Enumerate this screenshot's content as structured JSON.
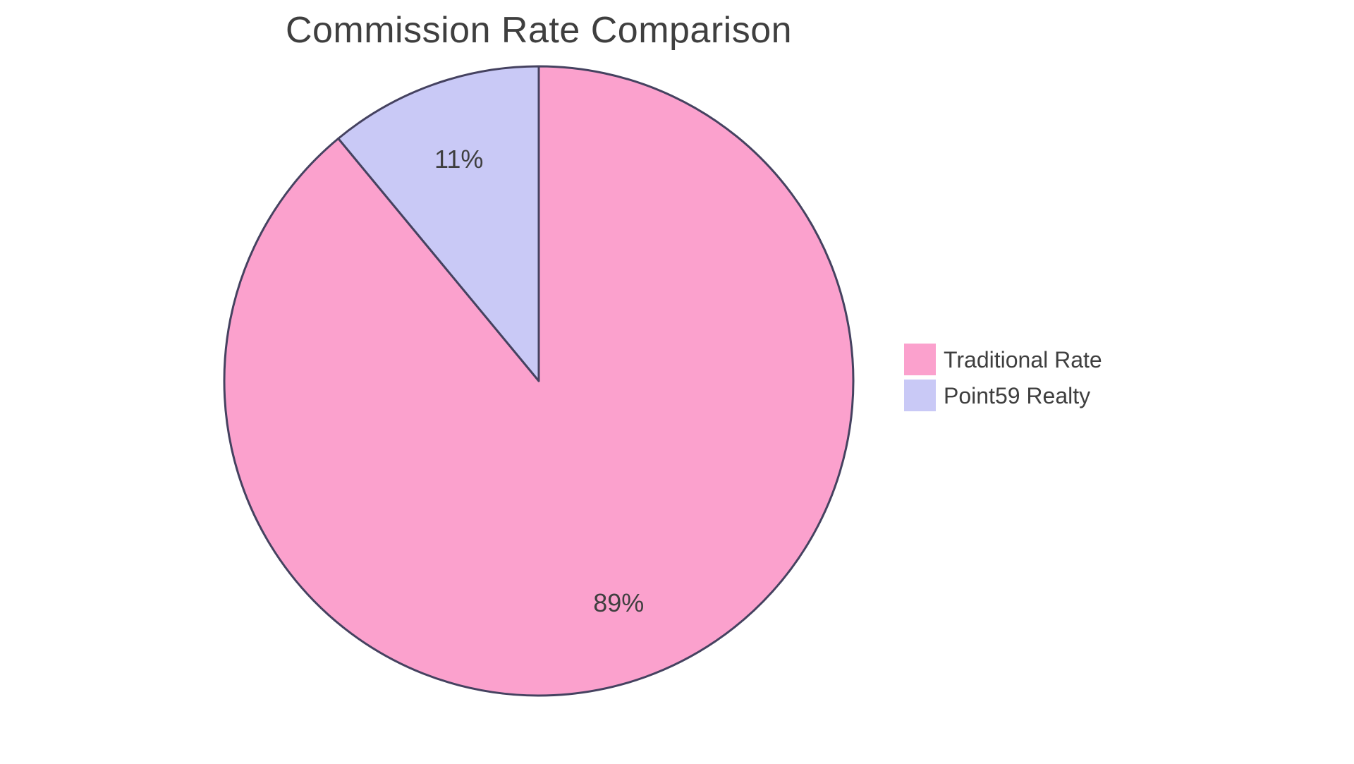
{
  "page": {
    "background": "#FFFFFF",
    "text_color": "#3F3F3F"
  },
  "chart_data": {
    "type": "pie",
    "title": "Commission Rate Comparison",
    "series": [
      {
        "label": "Traditional Rate",
        "value": 89,
        "display_value": "89%",
        "color": "#FBA1CD"
      },
      {
        "label": "Point59 Realty",
        "value": 11,
        "display_value": "11%",
        "color": "#C9C9F6"
      }
    ],
    "total": 100,
    "start_angle_deg": 0,
    "direction": "clockwise",
    "slice_stroke_color": "#454260",
    "slice_stroke_width": 3,
    "slice_label_color": "#3F3F3F",
    "legend_position": "right",
    "grid": false
  }
}
